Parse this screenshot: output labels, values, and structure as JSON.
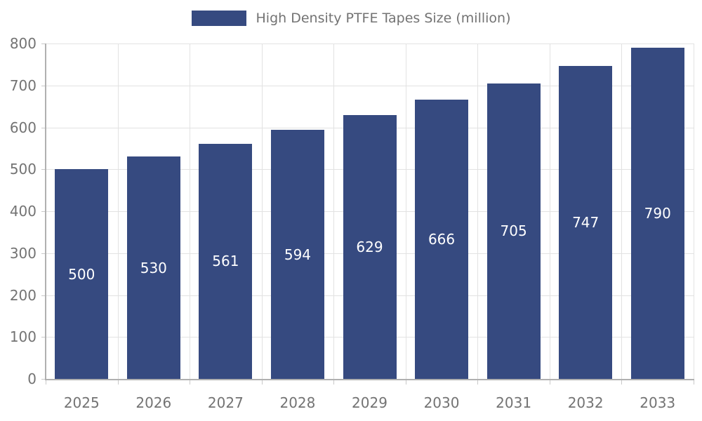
{
  "legend": {
    "label": "High Density PTFE Tapes Size (million)"
  },
  "colors": {
    "bar": "#364A80",
    "grid": "#e2e2e2",
    "axis_line": "#b0b0b0",
    "tick_mark": "#c9c9c9",
    "tick_label": "#737373",
    "value_label": "#ffffff",
    "legend_text": "#737373",
    "background": "#ffffff"
  },
  "chart_data": {
    "type": "bar",
    "title": "High Density PTFE Tapes Size (million)",
    "categories": [
      "2025",
      "2026",
      "2027",
      "2028",
      "2029",
      "2030",
      "2031",
      "2032",
      "2033"
    ],
    "values": [
      500,
      530,
      561,
      594,
      629,
      666,
      705,
      747,
      790
    ],
    "xlabel": "",
    "ylabel": "",
    "ylim": [
      0,
      800
    ],
    "yticks": [
      0,
      100,
      200,
      300,
      400,
      500,
      600,
      700,
      800
    ],
    "grid": true,
    "legend_position": "top",
    "value_label_position": "inside-center"
  }
}
